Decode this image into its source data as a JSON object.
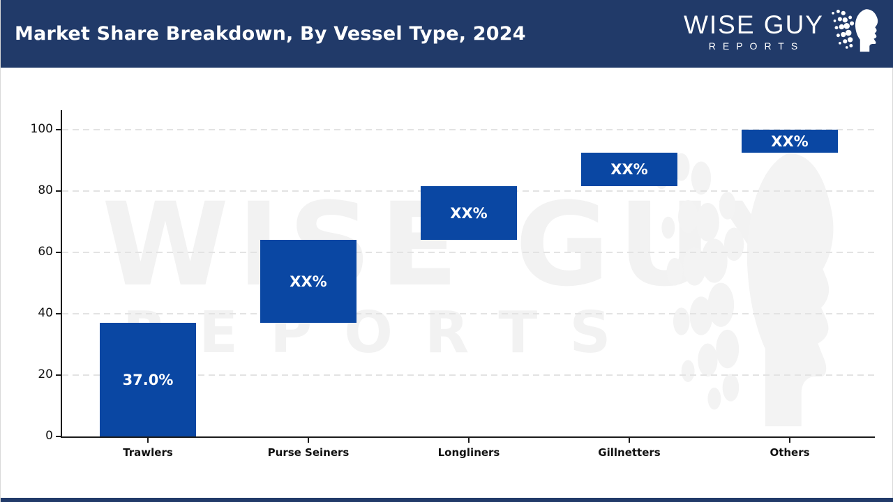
{
  "header": {
    "title": "Market Share Breakdown, By Vessel Type, 2024",
    "bg_color": "#213a69",
    "logo": {
      "line1": "WISE GUY",
      "line2": "REPORTS"
    }
  },
  "watermark": {
    "line1": "WISE GUY",
    "line2": "REPORTS"
  },
  "chart_data": {
    "type": "bar",
    "subtype": "waterfall",
    "title": "Market Share Breakdown, By Vessel Type, 2024",
    "categories": [
      "Trawlers",
      "Purse Seiners",
      "Longliners",
      "Gillnetters",
      "Others"
    ],
    "segments": [
      {
        "category": "Trawlers",
        "start": 0,
        "end": 37,
        "label": "37.0%"
      },
      {
        "category": "Purse Seiners",
        "start": 37,
        "end": 64,
        "label": "XX%"
      },
      {
        "category": "Longliners",
        "start": 64,
        "end": 81.5,
        "label": "XX%"
      },
      {
        "category": "Gillnetters",
        "start": 81.5,
        "end": 92.5,
        "label": "XX%"
      },
      {
        "category": "Others",
        "start": 92.5,
        "end": 100,
        "label": "XX%"
      }
    ],
    "y_ticks": [
      0,
      20,
      40,
      60,
      80,
      100
    ],
    "ylim": [
      0,
      107
    ],
    "xlabel": "",
    "ylabel": "",
    "grid": "dashed-horizontal",
    "legend": "none",
    "bar_color": "#0a47a3",
    "bar_label_color": "#ffffff",
    "axis_color": "#1a1a1a"
  }
}
